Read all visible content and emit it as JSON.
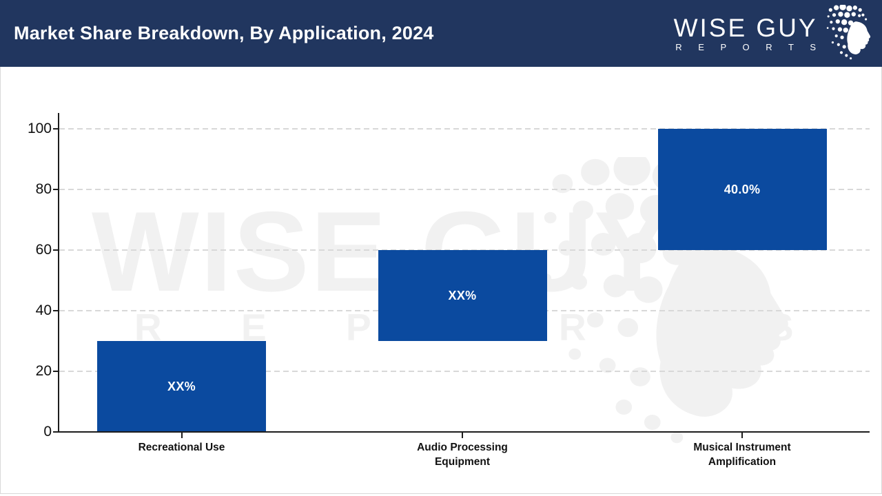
{
  "header": {
    "title": "Market Share Breakdown, By Application, 2024",
    "logo": {
      "line1": "WISE GUY",
      "line2": "R E P O R T S",
      "icon": "wiseguy-face-icon"
    },
    "bg_color": "#21365f"
  },
  "watermark": {
    "line1": "WISE GUY",
    "line2": "R E P O R T S",
    "icon": "wiseguy-face-icon"
  },
  "chart_data": {
    "type": "bar",
    "subtype": "floating-waterfall",
    "title": "Market Share Breakdown, By Application, 2024",
    "categories": [
      "Recreational Use",
      "Audio Processing Equipment",
      "Musical Instrument Amplification"
    ],
    "category_lines": [
      [
        "Recreational Use"
      ],
      [
        "Audio Processing",
        "Equipment"
      ],
      [
        "Musical Instrument",
        "Amplification"
      ]
    ],
    "bars": [
      {
        "category": "Recreational Use",
        "label": "XX%",
        "start": 0,
        "end": 30,
        "value": 30
      },
      {
        "category": "Audio Processing Equipment",
        "label": "XX%",
        "start": 30,
        "end": 60,
        "value": 30
      },
      {
        "category": "Musical Instrument Amplification",
        "label": "40.0%",
        "start": 60,
        "end": 100,
        "value": 40
      }
    ],
    "yticks": [
      0,
      20,
      40,
      60,
      80,
      100
    ],
    "ylim": [
      0,
      105
    ],
    "xlabel": "",
    "ylabel": "",
    "grid": "horizontal-dashed",
    "legend": "none",
    "bar_color": "#0b4a9f",
    "bar_label_color": "#ffffff",
    "axis_color": "#1c1c1c",
    "grid_color": "#d8d8d8"
  }
}
